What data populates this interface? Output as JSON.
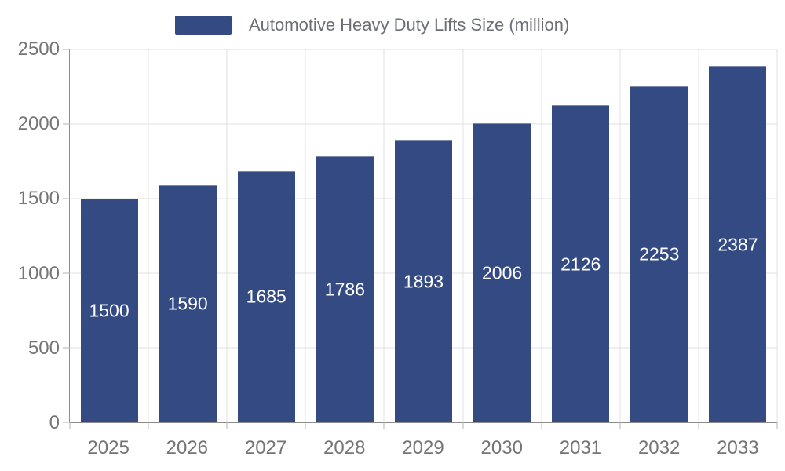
{
  "legend": {
    "label": "Automotive Heavy Duty Lifts Size (million)",
    "swatch_color": "#344a83"
  },
  "chart_data": {
    "type": "bar",
    "title": "Automotive Heavy Duty Lifts Size (million)",
    "series_name": "Automotive Heavy Duty Lifts Size (million)",
    "categories": [
      "2025",
      "2026",
      "2027",
      "2028",
      "2029",
      "2030",
      "2031",
      "2032",
      "2033"
    ],
    "values": [
      1500,
      1590,
      1685,
      1786,
      1893,
      2006,
      2126,
      2253,
      2387
    ],
    "data_labels_visible": true,
    "data_label_position": "inside-center",
    "xlabel": "",
    "ylabel": "",
    "ylim": [
      0,
      2500
    ],
    "yticks": [
      0,
      500,
      1000,
      1500,
      2000,
      2500
    ],
    "grid": true,
    "legend_position": "top",
    "colors": {
      "bar": "#344a83",
      "data_label": "#ffffff",
      "axis_line": "#8c8c8c",
      "gridline": "#e0e0e0",
      "tick_label": "#757575",
      "legend_text": "#6b6f76"
    }
  }
}
